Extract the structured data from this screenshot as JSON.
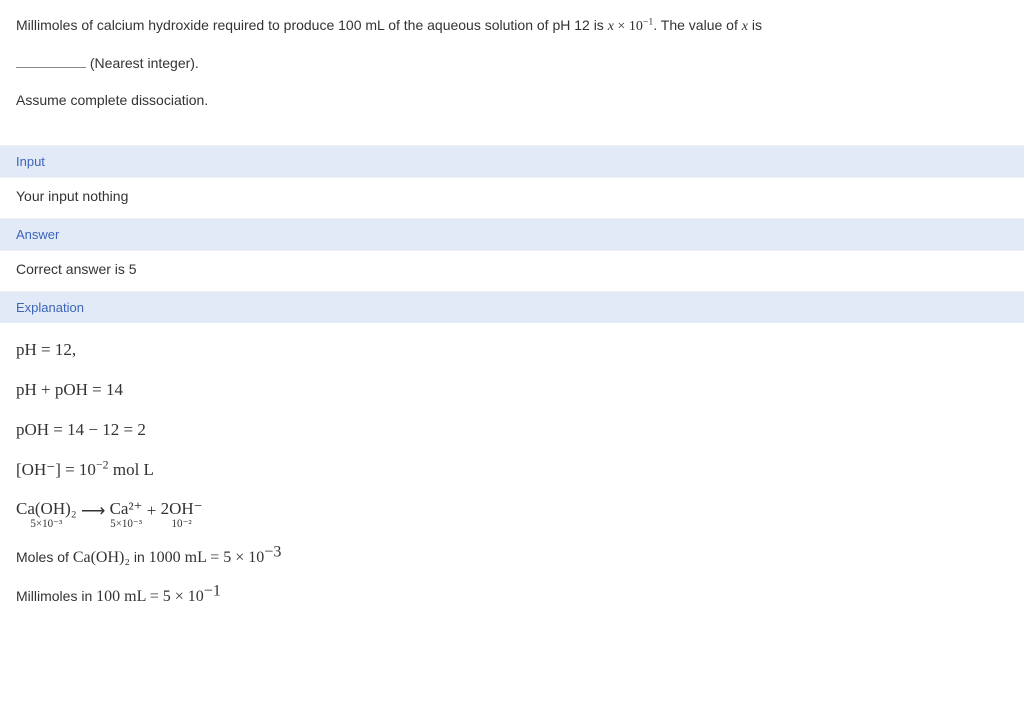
{
  "question": {
    "line1_pre": "Millimoles of calcium hydroxide required to produce 100 mL of the aqueous solution of pH 12 is ",
    "line1_math": "x × 10⁻¹",
    "line1_post": ". The value of ",
    "line1_var": "x",
    "line1_end": " is",
    "line2_post": " (Nearest integer).",
    "line3": "Assume complete dissociation."
  },
  "sections": {
    "input": {
      "header": "Input",
      "body": "Your input nothing"
    },
    "answer": {
      "header": "Answer",
      "body": "Correct answer is 5"
    },
    "explanation": {
      "header": "Explanation"
    }
  },
  "explanation": {
    "l1": "pH = 12,",
    "l2": "pH + pOH = 14",
    "l3": "pOH = 14 − 12 = 2",
    "l4_pre": "[OH⁻] = 10",
    "l4_exp": "−2",
    "l4_post": " mol L",
    "reaction": {
      "r1_top": "Ca(OH)₂",
      "r1_bot": "5×10⁻³",
      "arrow": " ⟶ ",
      "r2_top": "Ca²⁺",
      "r2_bot": "5×10⁻³",
      "plus": " + ",
      "r3_top": "2OH⁻",
      "r3_bot": "10⁻²"
    },
    "l6_pre": "Moles of ",
    "l6_m1": "Ca(OH)₂",
    "l6_mid": " in ",
    "l6_m2": "1000 mL",
    "l6_eq": " = 5 × 10",
    "l6_exp": "−3",
    "l7_pre": "Millimoles in ",
    "l7_m1": "100 mL",
    "l7_eq": " = 5 × 10",
    "l7_exp": "−1"
  },
  "colors": {
    "header_bg": "#e3eaf7",
    "header_text": "#3c65b9",
    "text": "#333333",
    "bg": "#ffffff"
  }
}
